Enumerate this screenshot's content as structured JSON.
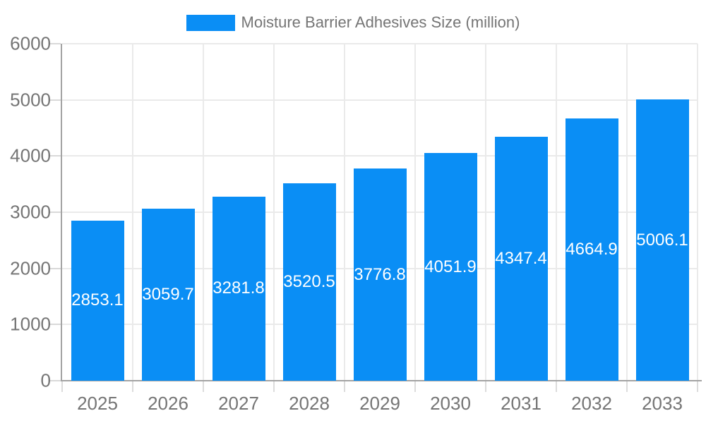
{
  "legend": {
    "label": "Moisture Barrier Adhesives Size (million)"
  },
  "chart_data": {
    "type": "bar",
    "title": "Moisture Barrier Adhesives Size (million)",
    "categories": [
      "2025",
      "2026",
      "2027",
      "2028",
      "2029",
      "2030",
      "2031",
      "2032",
      "2033"
    ],
    "series": [
      {
        "name": "Moisture Barrier Adhesives Size (million)",
        "values": [
          2853.1,
          3059.7,
          3281.8,
          3520.5,
          3776.8,
          4051.9,
          4347.4,
          4664.9,
          5006.1
        ]
      }
    ],
    "xlabel": "",
    "ylabel": "",
    "ylim": [
      0,
      6000
    ],
    "ytick_step": 1000,
    "grid": true,
    "legend_position": "top",
    "value_labels": "inside-middle",
    "colors": {
      "bar": "#0a8ef5",
      "value_label": "#ffffff",
      "axis_line": "#a3a3a3",
      "gridline": "#eaeaea",
      "tick_mark": "#d9d9d9",
      "tick_text": "#757575",
      "legend_text": "#757575",
      "background": "#ffffff"
    }
  }
}
